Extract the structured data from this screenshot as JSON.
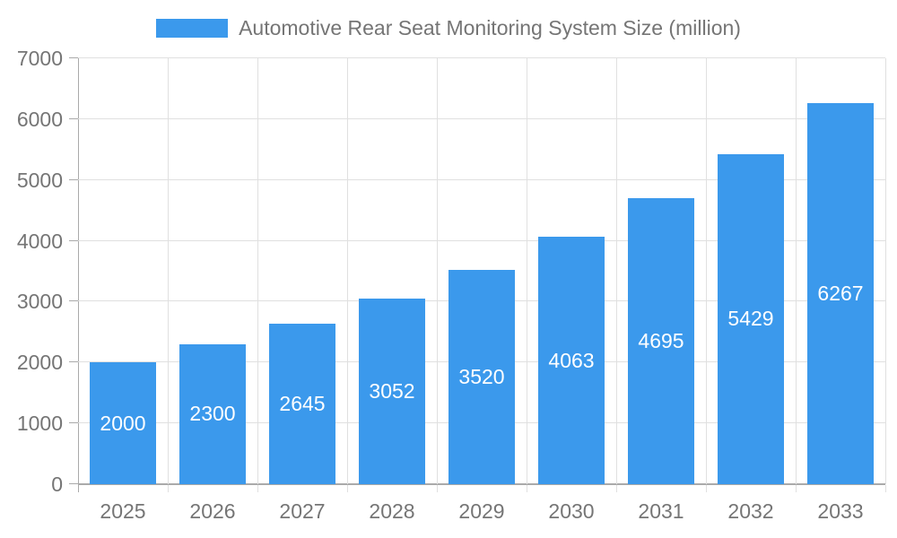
{
  "chart_data": {
    "type": "bar",
    "title": "Automotive Rear Seat Monitoring System Size (million)",
    "categories": [
      "2025",
      "2026",
      "2027",
      "2028",
      "2029",
      "2030",
      "2031",
      "2032",
      "2033"
    ],
    "values": [
      2000,
      2300,
      2645,
      3052,
      3520,
      4063,
      4695,
      5429,
      6267
    ],
    "series_name": "Automotive Rear Seat Monitoring System Size (million)",
    "xlabel": "",
    "ylabel": "",
    "ylim": [
      0,
      7000
    ],
    "ytick_step": 1000,
    "yticks": [
      "0",
      "1000",
      "2000",
      "3000",
      "4000",
      "5000",
      "6000",
      "7000"
    ],
    "grid": "on",
    "legend_position": "top-center",
    "value_labels": "inside-center",
    "colors": {
      "bar": "#3b99ec",
      "text": "#757575",
      "grid": "#e0e0e0",
      "axis": "#aaaaaa",
      "value_label": "#ffffff"
    }
  }
}
